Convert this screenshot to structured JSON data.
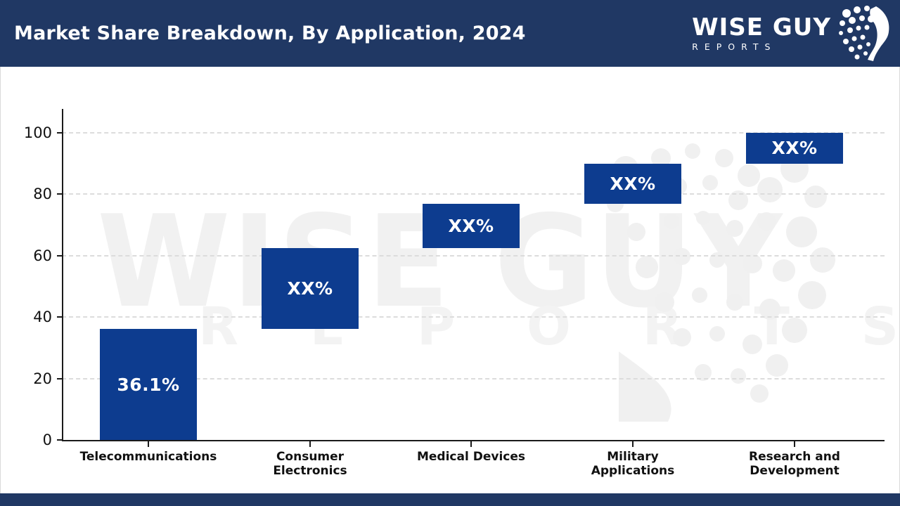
{
  "header": {
    "title": "Market Share Breakdown, By Application, 2024",
    "background_color": "#203864",
    "logo": {
      "line1": "WISE GUY",
      "line2": "REPORTS"
    }
  },
  "footer": {
    "background_color": "#203864"
  },
  "watermark": {
    "line1": "WISE GUY",
    "line2": "R E P O R T S"
  },
  "colors": {
    "bar": "#0d3c8f",
    "bar_label": "#ffffff",
    "gridline": "#dcdcdc",
    "axis": "#1a1a1a",
    "watermark": "#f1f1f1"
  },
  "chart_data": {
    "type": "bar",
    "subtype": "waterfall",
    "title": "Market Share Breakdown, By Application, 2024",
    "xlabel": "",
    "ylabel": "",
    "ylim": [
      0,
      107
    ],
    "yticks": [
      0,
      20,
      40,
      60,
      80,
      100
    ],
    "grid": "horizontal-dashed",
    "legend": "none",
    "categories": [
      "Telecommunications",
      "Consumer\nElectronics",
      "Medical Devices",
      "Military\nApplications",
      "Research and\nDevelopment"
    ],
    "bars": [
      {
        "category": "Telecommunications",
        "start": 0,
        "end": 36.1,
        "label": "36.1%"
      },
      {
        "category": "Consumer Electronics",
        "start": 36.1,
        "end": 62.3,
        "label": "XX%"
      },
      {
        "category": "Medical Devices",
        "start": 62.3,
        "end": 76.9,
        "label": "XX%"
      },
      {
        "category": "Military Applications",
        "start": 76.9,
        "end": 89.9,
        "label": "XX%"
      },
      {
        "category": "Research and Development",
        "start": 89.9,
        "end": 100,
        "label": "XX%"
      }
    ]
  }
}
